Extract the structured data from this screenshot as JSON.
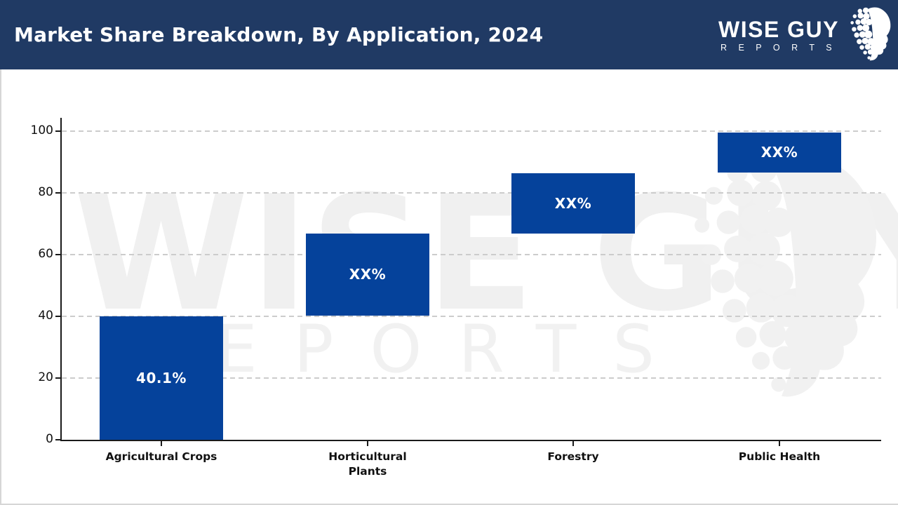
{
  "header": {
    "title": "Market Share Breakdown, By Application, 2024",
    "bg_color": "#203A64",
    "logo": {
      "line1": "WISE GUY",
      "line2": "R E P O R T S"
    }
  },
  "watermark": {
    "line1": "WISE GUY",
    "line2": "REPORTS"
  },
  "chart_data": {
    "type": "bar",
    "subtype": "waterfall",
    "title": "Market Share Breakdown, By Application, 2024",
    "categories": [
      "Agricultural Crops",
      "Horticultural Plants",
      "Forestry",
      "Public Health"
    ],
    "categories_display": [
      "Agricultural Crops",
      "Horticultural\nPlants",
      "Forestry",
      "Public Health"
    ],
    "segments": [
      {
        "category": "Agricultural Crops",
        "start": 0,
        "end": 40.1,
        "label": "40.1%"
      },
      {
        "category": "Horticultural Plants",
        "start": 40.3,
        "end": 66.9,
        "label": "XX%"
      },
      {
        "category": "Forestry",
        "start": 66.8,
        "end": 86.4,
        "label": "XX%"
      },
      {
        "category": "Public Health",
        "start": 86.7,
        "end": 99.6,
        "label": "XX%"
      }
    ],
    "xlabel": "",
    "ylabel": "",
    "yticks": [
      0,
      20,
      40,
      60,
      80,
      100
    ],
    "ylim": [
      0,
      104.5
    ],
    "bar_color": "#05429B",
    "bar_label_color": "#FFFFFF",
    "axis_color": "#1A1A1A",
    "grid": {
      "axis": "y",
      "style": "dashed",
      "color": "#CCCCCC"
    },
    "legend": "none"
  }
}
